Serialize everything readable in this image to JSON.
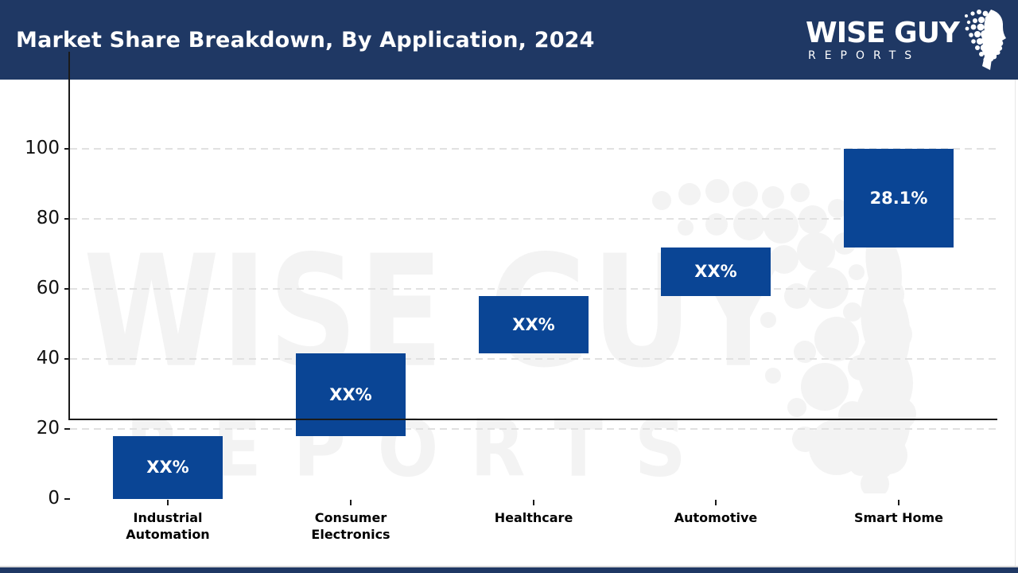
{
  "header": {
    "title": "Market Share Breakdown, By Application, 2024",
    "logo": {
      "main": "WISE GUY",
      "sub": "REPORTS"
    }
  },
  "watermark": {
    "main": "WISE GUY",
    "sub": "REPORTS"
  },
  "colors": {
    "header_bg": "#1f3864",
    "bar": "#0a4595",
    "bar_label": "#ffffff",
    "gridline": "#e1e1e1",
    "axis": "#1a1a1a",
    "watermark": "#f3f3f3",
    "footer_line": "#d9d9d9"
  },
  "chart_data": {
    "type": "bar",
    "subtype": "waterfall",
    "title": "Market Share Breakdown, By Application, 2024",
    "categories": [
      "Industrial\nAutomation",
      "Consumer\nElectronics",
      "Healthcare",
      "Automotive",
      "Smart Home"
    ],
    "bar_starts": [
      0,
      18,
      41.6,
      58,
      71.9
    ],
    "bar_ends": [
      18,
      41.6,
      58,
      71.9,
      100
    ],
    "bar_labels": [
      "XX%",
      "XX%",
      "XX%",
      "XX%",
      "28.1%"
    ],
    "xlabel": "",
    "ylabel": "",
    "ylim": [
      0,
      100
    ],
    "yticks": [
      0,
      20,
      40,
      60,
      80,
      100
    ],
    "grid": "horizontal-dashed",
    "legend": "none",
    "bar_color": "#0a4595"
  }
}
